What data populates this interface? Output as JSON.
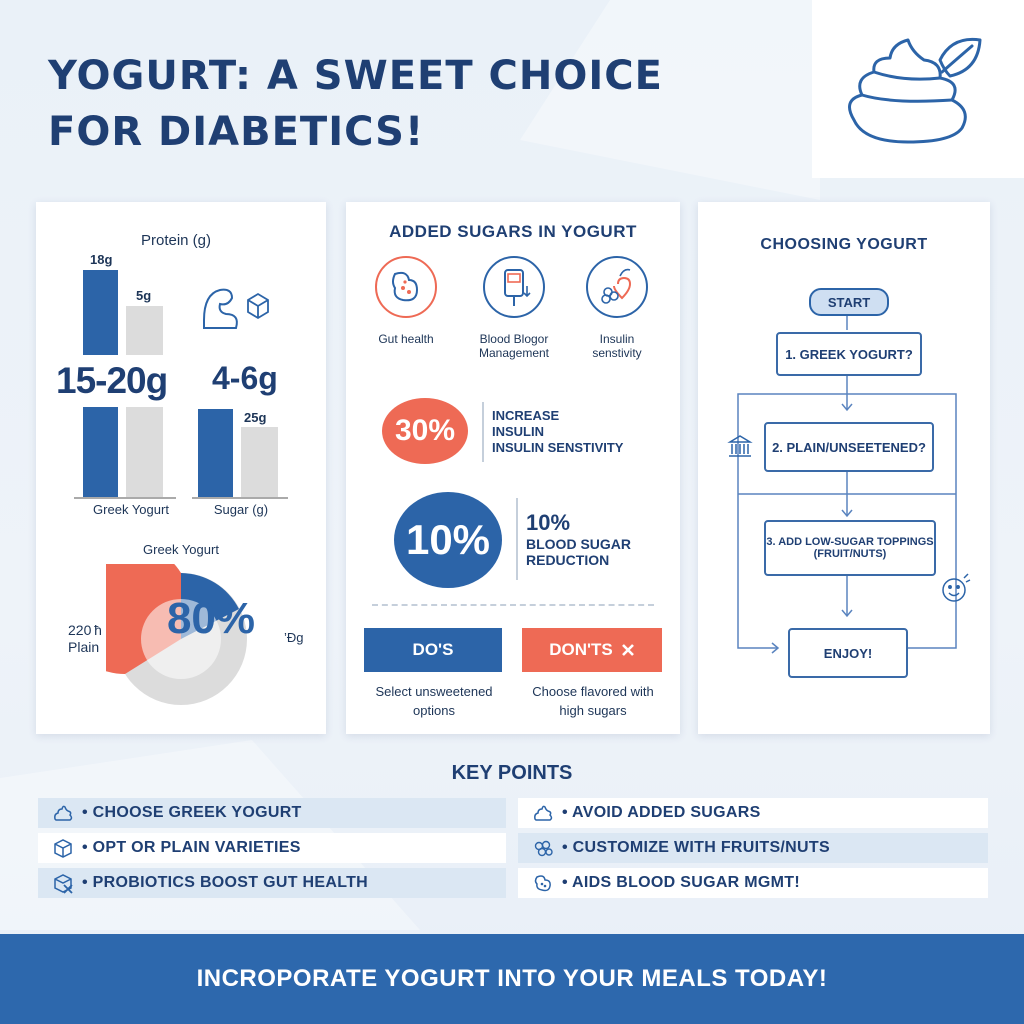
{
  "title": "YOGURT: A SWEET CHOICE FOR DIABETICS!",
  "colors": {
    "blue": "#2c64a8",
    "navy": "#1f3f73",
    "coral": "#ee6a55",
    "gray": "#dcdcdc",
    "banner": "#2d68ad"
  },
  "protein_panel": {
    "chart_title": "Protein (g)",
    "label_18g": "18g",
    "label_5g": "5g",
    "big_left": "15-20g",
    "big_right": "4-6g",
    "label_25g": "25g",
    "xlabel_left": "Greek Yogurt",
    "xlabel_right": "Sugar (g)",
    "pie_title": "Greek Yogurt",
    "pie_value": "80%",
    "pie_left_label_1": "220 ħ",
    "pie_left_label_2": "Plain",
    "pie_right_label": "’Ðg"
  },
  "chart_data": {
    "type": "bar",
    "title": "Protein (g)",
    "categories": [
      "Greek Yogurt",
      "Sugar (g)"
    ],
    "series": [
      {
        "values": [
          18,
          25
        ]
      },
      {
        "values": [
          5,
          25
        ]
      }
    ]
  },
  "sugars_panel": {
    "title": "ADDED SUGARS IN YOGURT",
    "icons": [
      {
        "icon": "gut-icon",
        "label": "Gut health"
      },
      {
        "icon": "glucose-meter-icon",
        "label": "Blood Blogor\nManagement"
      },
      {
        "icon": "berries-heart-icon",
        "label": "Insulin\nsenstivity"
      }
    ],
    "stat1_value": "30%",
    "stat1_text_1": "INCREASE",
    "stat1_text_2": "INSULIN",
    "stat1_text_3": "INSULIN SENSTIVITY",
    "stat2_value": "10%",
    "stat2_text_1": "10%",
    "stat2_text_2": "BLOOD SUGAR",
    "stat2_text_3": "REDUCTION",
    "dos_label": "DO'S",
    "donts_label": "DON'TS",
    "dos_text": "Select unsweetened\noptions",
    "donts_text": "Choose flavored with\nhigh sugars"
  },
  "choosing_panel": {
    "title": "CHOOSING YOGURT",
    "start": "START",
    "step1": "1. GREEK YOGURT?",
    "step2": "2. PLAIN/UNSEETENED?",
    "step3_1": "3. ADD LOW-SUGAR TOPPINGS",
    "step3_2": "(FRUIT/NUTS)",
    "enjoy": "ENJOY!"
  },
  "key_points": {
    "title": "KEY POINTS",
    "left": [
      {
        "icon": "yogurt-swirl-icon",
        "text": "• CHOOSE GREEK YOGURT"
      },
      {
        "icon": "cube-icon",
        "text": "•  OPT OR PLAIN VARIETIES"
      },
      {
        "icon": "box-x-icon",
        "text": "• PROBIOTICS BOOST GUT HEALTH"
      }
    ],
    "right": [
      {
        "icon": "yogurt-swirl-icon",
        "text": "• AVOID ADDED SUGARS"
      },
      {
        "icon": "berries-icon",
        "text": "• CUSTOMIZE WITH FRUITS/NUTS"
      },
      {
        "icon": "gut-icon",
        "text": "• AIDS BLOOD SUGAR MGMT!"
      }
    ]
  },
  "cta": "INCROPORATE YOGURT INTO YOUR MEALS TODAY!"
}
